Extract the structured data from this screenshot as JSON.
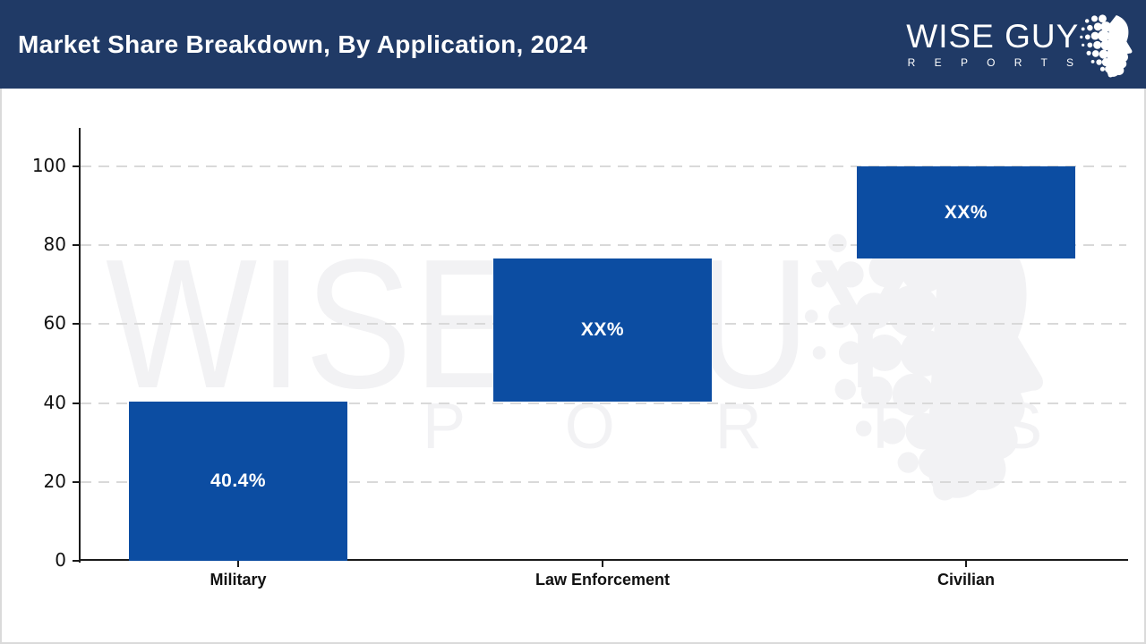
{
  "header": {
    "title": "Market Share Breakdown, By Application, 2024",
    "logo": {
      "wordmark": "WISE GUY",
      "subtext": "R E P O R T S",
      "head_icon": "dotted-head-profile"
    }
  },
  "watermark": {
    "line1": "WISE GUY",
    "line2": "R E P O R T S",
    "head_icon": "dotted-head-profile"
  },
  "colors": {
    "header_bg": "#203A66",
    "bar": "#0C4DA2",
    "grid": "#D9D9D9",
    "axis": "#1A1A1A",
    "watermark": "#F2F2F4",
    "bar_label": "#FFFFFF"
  },
  "chart_data": {
    "type": "bar",
    "subtype": "waterfall-floating-bars",
    "title": "Market Share Breakdown, By Application, 2024",
    "xlabel": "",
    "ylabel": "",
    "categories": [
      "Military",
      "Law Enforcement",
      "Civilian"
    ],
    "bars": [
      {
        "category": "Military",
        "start": 0,
        "end": 40.4,
        "label": "40.4%"
      },
      {
        "category": "Law Enforcement",
        "start": 40.4,
        "end": 76.6,
        "label": "XX%"
      },
      {
        "category": "Civilian",
        "start": 76.6,
        "end": 100,
        "label": "XX%"
      }
    ],
    "yticks": [
      0,
      20,
      40,
      60,
      80,
      100
    ],
    "ylim": [
      0,
      105
    ],
    "grid": "dashed-horizontal",
    "legend": "none"
  }
}
